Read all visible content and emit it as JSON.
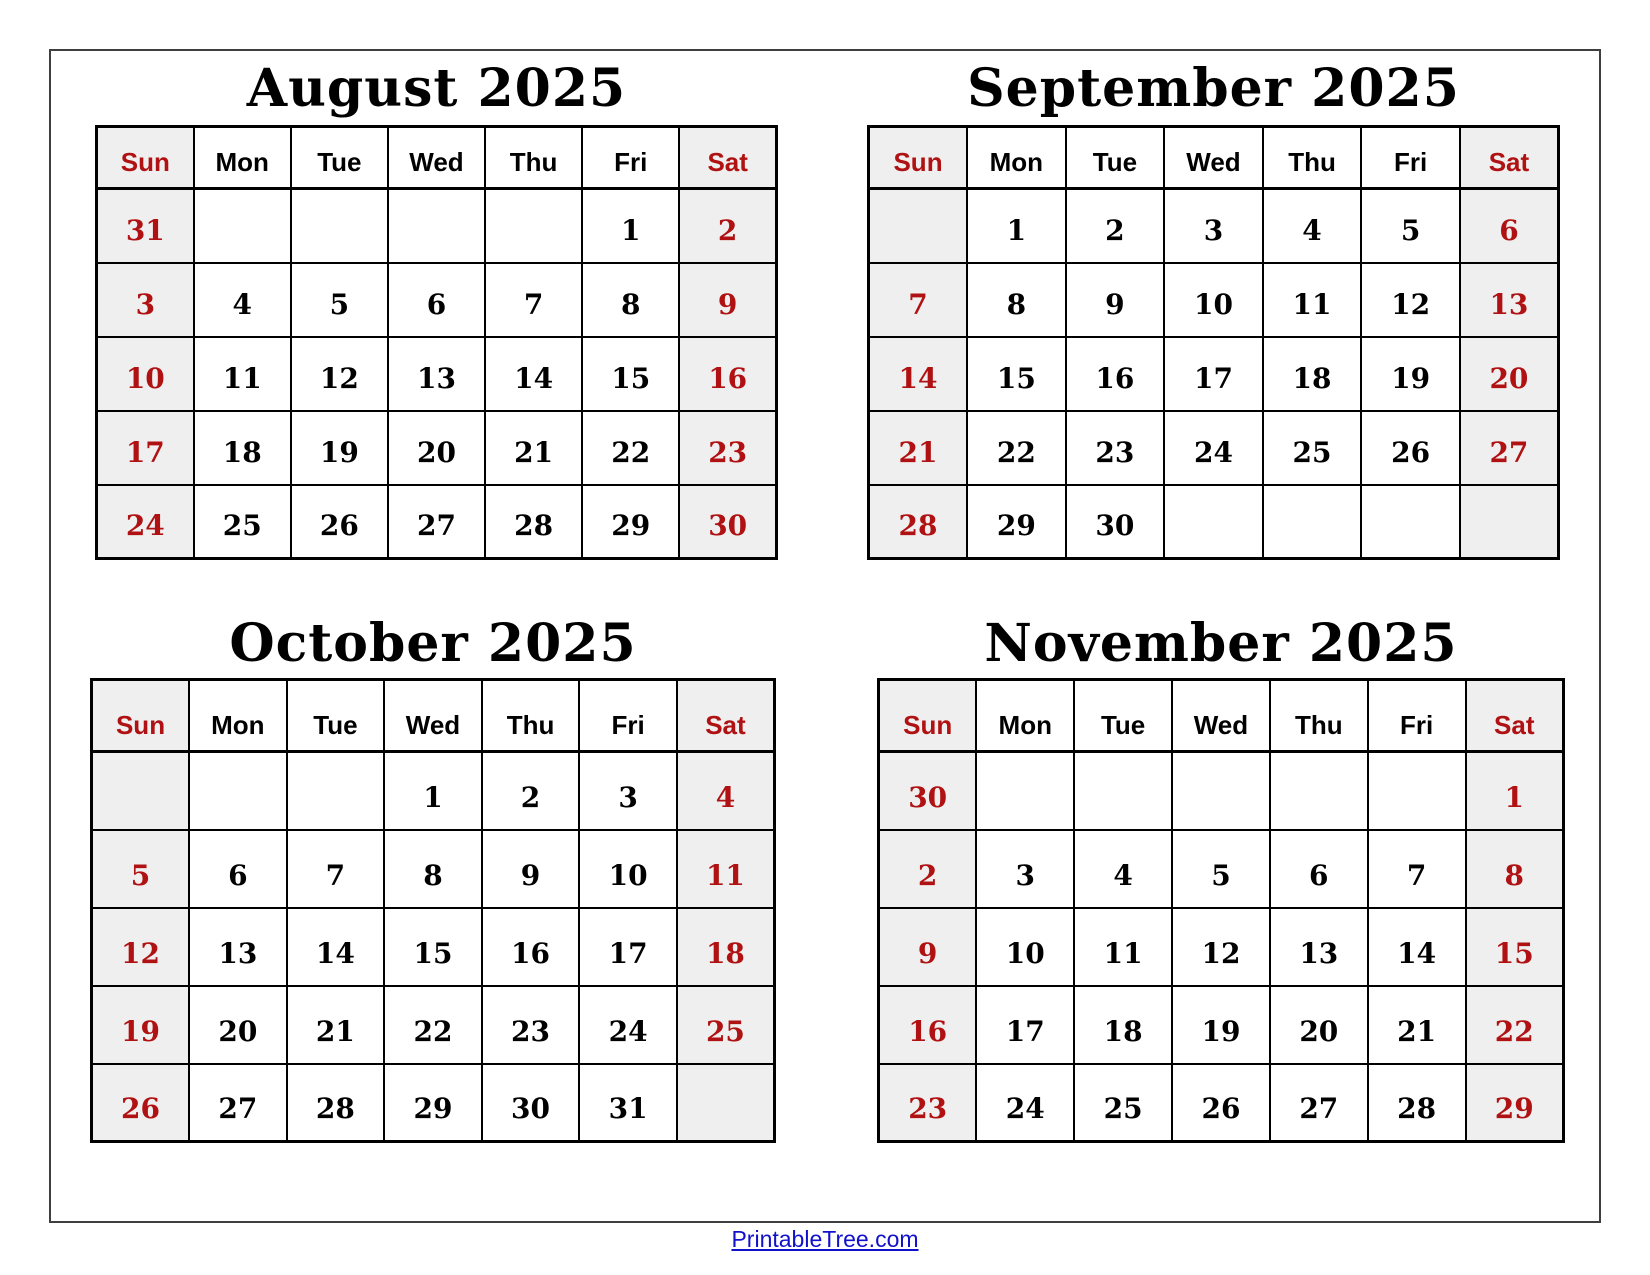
{
  "day_headers": [
    "Sun",
    "Mon",
    "Tue",
    "Wed",
    "Thu",
    "Fri",
    "Sat"
  ],
  "months": [
    {
      "title": "August 2025",
      "weeks": [
        [
          "31",
          "",
          "",
          "",
          "",
          "1",
          "2"
        ],
        [
          "3",
          "4",
          "5",
          "6",
          "7",
          "8",
          "9"
        ],
        [
          "10",
          "11",
          "12",
          "13",
          "14",
          "15",
          "16"
        ],
        [
          "17",
          "18",
          "19",
          "20",
          "21",
          "22",
          "23"
        ],
        [
          "24",
          "25",
          "26",
          "27",
          "28",
          "29",
          "30"
        ]
      ]
    },
    {
      "title": "September 2025",
      "weeks": [
        [
          "",
          "1",
          "2",
          "3",
          "4",
          "5",
          "6"
        ],
        [
          "7",
          "8",
          "9",
          "10",
          "11",
          "12",
          "13"
        ],
        [
          "14",
          "15",
          "16",
          "17",
          "18",
          "19",
          "20"
        ],
        [
          "21",
          "22",
          "23",
          "24",
          "25",
          "26",
          "27"
        ],
        [
          "28",
          "29",
          "30",
          "",
          "",
          "",
          ""
        ]
      ]
    },
    {
      "title": "October 2025",
      "weeks": [
        [
          "",
          "",
          "",
          "1",
          "2",
          "3",
          "4"
        ],
        [
          "5",
          "6",
          "7",
          "8",
          "9",
          "10",
          "11"
        ],
        [
          "12",
          "13",
          "14",
          "15",
          "16",
          "17",
          "18"
        ],
        [
          "19",
          "20",
          "21",
          "22",
          "23",
          "24",
          "25"
        ],
        [
          "26",
          "27",
          "28",
          "29",
          "30",
          "31",
          ""
        ]
      ]
    },
    {
      "title": "November 2025",
      "weeks": [
        [
          "30",
          "",
          "",
          "",
          "",
          "",
          "1"
        ],
        [
          "2",
          "3",
          "4",
          "5",
          "6",
          "7",
          "8"
        ],
        [
          "9",
          "10",
          "11",
          "12",
          "13",
          "14",
          "15"
        ],
        [
          "16",
          "17",
          "18",
          "19",
          "20",
          "21",
          "22"
        ],
        [
          "23",
          "24",
          "25",
          "26",
          "27",
          "28",
          "29"
        ]
      ]
    }
  ],
  "footer": {
    "link_text": "PrintableTree.com"
  },
  "colors": {
    "weekend_red": "#b01112",
    "weekend_bg": "#efefef",
    "grid_black": "#000000",
    "frame_gray": "#3f3f3f",
    "link_blue": "#1111cc"
  }
}
